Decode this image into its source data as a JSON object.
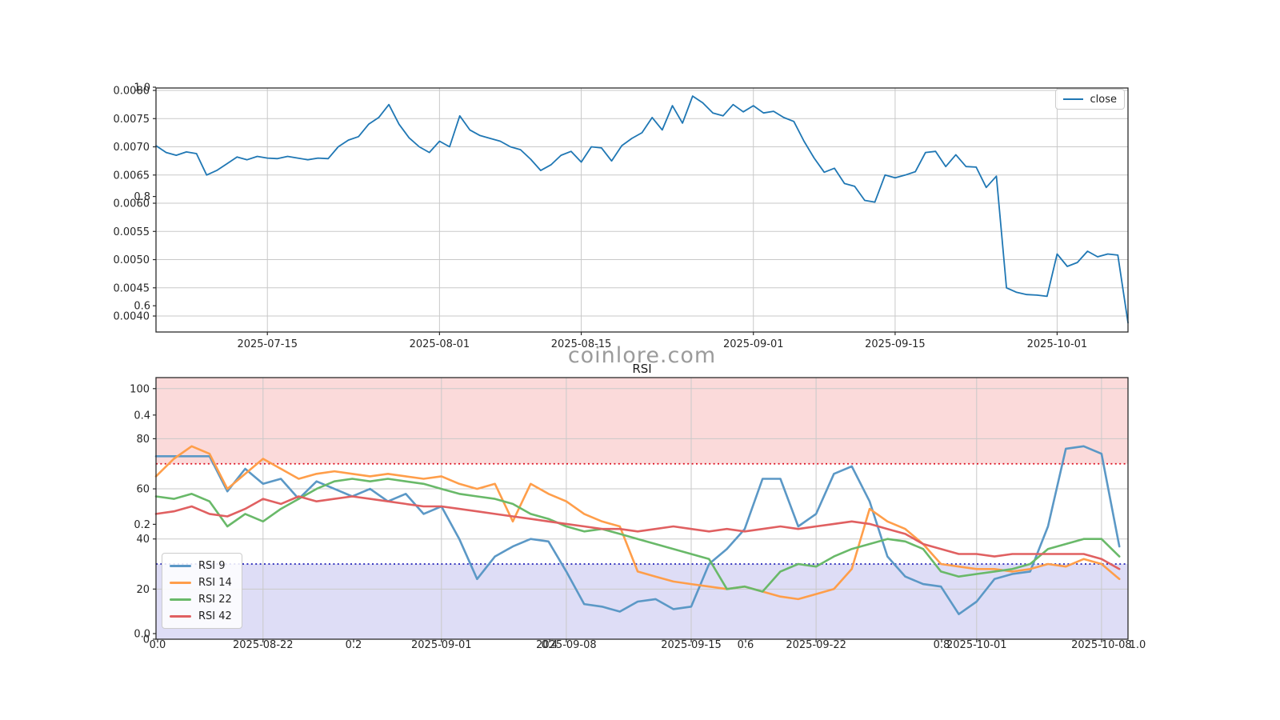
{
  "watermark": "coinlore.com",
  "colors": {
    "background": "#ffffff",
    "grid": "#c9c9c9",
    "spine": "#2b2b2b",
    "text": "#262626",
    "watermark": "#9b9b9b",
    "legend_border": "#cccccc"
  },
  "secondary_axis": {
    "x_ticks": [
      {
        "f": 0.0,
        "label": "0.0"
      },
      {
        "f": 0.2,
        "label": "0.2"
      },
      {
        "f": 0.4,
        "label": "0.4"
      },
      {
        "f": 0.6,
        "label": "0.6"
      },
      {
        "f": 0.8,
        "label": "0.8"
      },
      {
        "f": 1.0,
        "label": "1.0"
      }
    ],
    "y_ticks": [
      {
        "f": 1.0,
        "label": "1.0"
      },
      {
        "f": 0.8,
        "label": "0.8"
      },
      {
        "f": 0.6,
        "label": "0.6"
      },
      {
        "f": 0.4,
        "label": "0.4"
      },
      {
        "f": 0.2,
        "label": "0.2"
      },
      {
        "f": 0.0,
        "label": "0.0"
      }
    ]
  },
  "chart_data": [
    {
      "type": "line",
      "panel": "price",
      "title": "",
      "grid": true,
      "legend_position": "upper right",
      "x_start_date": "2025-07-04",
      "xlabel": "",
      "ylabel": "",
      "ylim": [
        0.00372,
        0.00804
      ],
      "x_ticks": [
        {
          "day": 11,
          "label": "2025-07-15"
        },
        {
          "day": 28,
          "label": "2025-08-01"
        },
        {
          "day": 42,
          "label": "2025-08-15"
        },
        {
          "day": 59,
          "label": "2025-09-01"
        },
        {
          "day": 73,
          "label": "2025-09-15"
        },
        {
          "day": 89,
          "label": "2025-10-01"
        }
      ],
      "y_ticks": [
        {
          "v": 0.008,
          "label": "0.0080"
        },
        {
          "v": 0.0075,
          "label": "0.0075"
        },
        {
          "v": 0.007,
          "label": "0.0070"
        },
        {
          "v": 0.0065,
          "label": "0.0065"
        },
        {
          "v": 0.006,
          "label": "0.0060"
        },
        {
          "v": 0.0055,
          "label": "0.0055"
        },
        {
          "v": 0.005,
          "label": "0.0050"
        },
        {
          "v": 0.0045,
          "label": "0.0045"
        },
        {
          "v": 0.004,
          "label": "0.0040"
        }
      ],
      "series": [
        {
          "name": "close",
          "color": "#1f77b4",
          "width": 1.8,
          "values": [
            0.00702,
            0.0069,
            0.00685,
            0.00691,
            0.00688,
            0.0065,
            0.00658,
            0.0067,
            0.00682,
            0.00677,
            0.00683,
            0.0068,
            0.00679,
            0.00683,
            0.0068,
            0.00677,
            0.0068,
            0.00679,
            0.007,
            0.00712,
            0.00718,
            0.0074,
            0.00752,
            0.00775,
            0.0074,
            0.00716,
            0.007,
            0.0069,
            0.0071,
            0.007,
            0.00755,
            0.0073,
            0.0072,
            0.00715,
            0.0071,
            0.007,
            0.00695,
            0.00678,
            0.00658,
            0.00668,
            0.00685,
            0.00692,
            0.00673,
            0.007,
            0.00698,
            0.00675,
            0.00702,
            0.00715,
            0.00725,
            0.00752,
            0.0073,
            0.00773,
            0.00742,
            0.0079,
            0.00778,
            0.0076,
            0.00755,
            0.00775,
            0.00762,
            0.00773,
            0.0076,
            0.00763,
            0.00752,
            0.00745,
            0.0071,
            0.0068,
            0.00655,
            0.00662,
            0.00635,
            0.0063,
            0.00605,
            0.00602,
            0.0065,
            0.00645,
            0.0065,
            0.00656,
            0.0069,
            0.00692,
            0.00665,
            0.00686,
            0.00665,
            0.00664,
            0.00628,
            0.00648,
            0.0045,
            0.00442,
            0.00438,
            0.00437,
            0.00435,
            0.0051,
            0.00488,
            0.00495,
            0.00515,
            0.00505,
            0.0051,
            0.00508,
            0.00388
          ]
        }
      ]
    },
    {
      "type": "line",
      "panel": "rsi",
      "title": "RSI",
      "grid": true,
      "legend_position": "lower left",
      "x_start_date": "2025-08-16",
      "xlabel": "",
      "ylabel": "",
      "ylim": [
        0,
        104.4
      ],
      "overbought": 70,
      "oversold": 30,
      "bands": [
        {
          "from": 70,
          "to": 104.4,
          "color": "#fbdada"
        },
        {
          "from": 0,
          "to": 30,
          "color": "#deddf6"
        }
      ],
      "threshold_lines": [
        {
          "v": 70,
          "color": "#dc1020"
        },
        {
          "v": 30,
          "color": "#2323b8"
        }
      ],
      "x_ticks": [
        {
          "day": 6,
          "label": "2025-08-22"
        },
        {
          "day": 16,
          "label": "2025-09-01"
        },
        {
          "day": 23,
          "label": "2025-09-08"
        },
        {
          "day": 30,
          "label": "2025-09-15"
        },
        {
          "day": 37,
          "label": "2025-09-22"
        },
        {
          "day": 46,
          "label": "2025-10-01"
        },
        {
          "day": 53,
          "label": "2025-10-08"
        }
      ],
      "y_ticks": [
        {
          "v": 100,
          "label": "100"
        },
        {
          "v": 80,
          "label": "80"
        },
        {
          "v": 60,
          "label": "60"
        },
        {
          "v": 40,
          "label": "40"
        },
        {
          "v": 20,
          "label": "20"
        },
        {
          "v": 0,
          "label": "0"
        }
      ],
      "series": [
        {
          "name": "RSI 9",
          "color": "#5b98c6",
          "width": 2.6,
          "values": [
            73,
            73,
            73,
            73,
            59,
            68,
            62,
            64,
            56,
            63,
            60,
            57,
            60,
            55,
            58,
            50,
            53,
            40,
            24,
            33,
            37,
            40,
            39,
            27,
            14,
            13,
            11,
            15,
            16,
            12,
            13,
            30,
            36,
            44,
            64,
            64,
            45,
            50,
            66,
            69,
            55,
            33,
            25,
            22,
            21,
            10,
            15,
            24,
            26,
            27,
            45,
            76,
            77,
            74,
            37
          ]
        },
        {
          "name": "RSI 14",
          "color": "#ff9e4a",
          "width": 2.6,
          "values": [
            65,
            72,
            77,
            74,
            60,
            66,
            72,
            68,
            64,
            66,
            67,
            66,
            65,
            66,
            65,
            64,
            65,
            62,
            60,
            62,
            47,
            62,
            58,
            55,
            50,
            47,
            45,
            27,
            25,
            23,
            22,
            21,
            20,
            21,
            19,
            17,
            16,
            18,
            20,
            28,
            52,
            47,
            44,
            38,
            30,
            29,
            28,
            28,
            27,
            28,
            30,
            29,
            32,
            30,
            24
          ]
        },
        {
          "name": "RSI 22",
          "color": "#69b969",
          "width": 2.6,
          "values": [
            57,
            56,
            58,
            55,
            45,
            50,
            47,
            52,
            56,
            60,
            63,
            64,
            63,
            64,
            63,
            62,
            60,
            58,
            57,
            56,
            54,
            50,
            48,
            45,
            43,
            44,
            42,
            40,
            38,
            36,
            34,
            32,
            20,
            21,
            19,
            27,
            30,
            29,
            33,
            36,
            38,
            40,
            39,
            36,
            27,
            25,
            26,
            27,
            28,
            30,
            36,
            38,
            40,
            40,
            33
          ]
        },
        {
          "name": "RSI 42",
          "color": "#e06061",
          "width": 2.6,
          "values": [
            50,
            51,
            53,
            50,
            49,
            52,
            56,
            54,
            57,
            55,
            56,
            57,
            56,
            55,
            54,
            53,
            53,
            52,
            51,
            50,
            49,
            48,
            47,
            46,
            45,
            44,
            44,
            43,
            44,
            45,
            44,
            43,
            44,
            43,
            44,
            45,
            44,
            45,
            46,
            47,
            46,
            44,
            42,
            38,
            36,
            34,
            34,
            33,
            34,
            34,
            34,
            34,
            34,
            32,
            28
          ]
        }
      ]
    }
  ]
}
